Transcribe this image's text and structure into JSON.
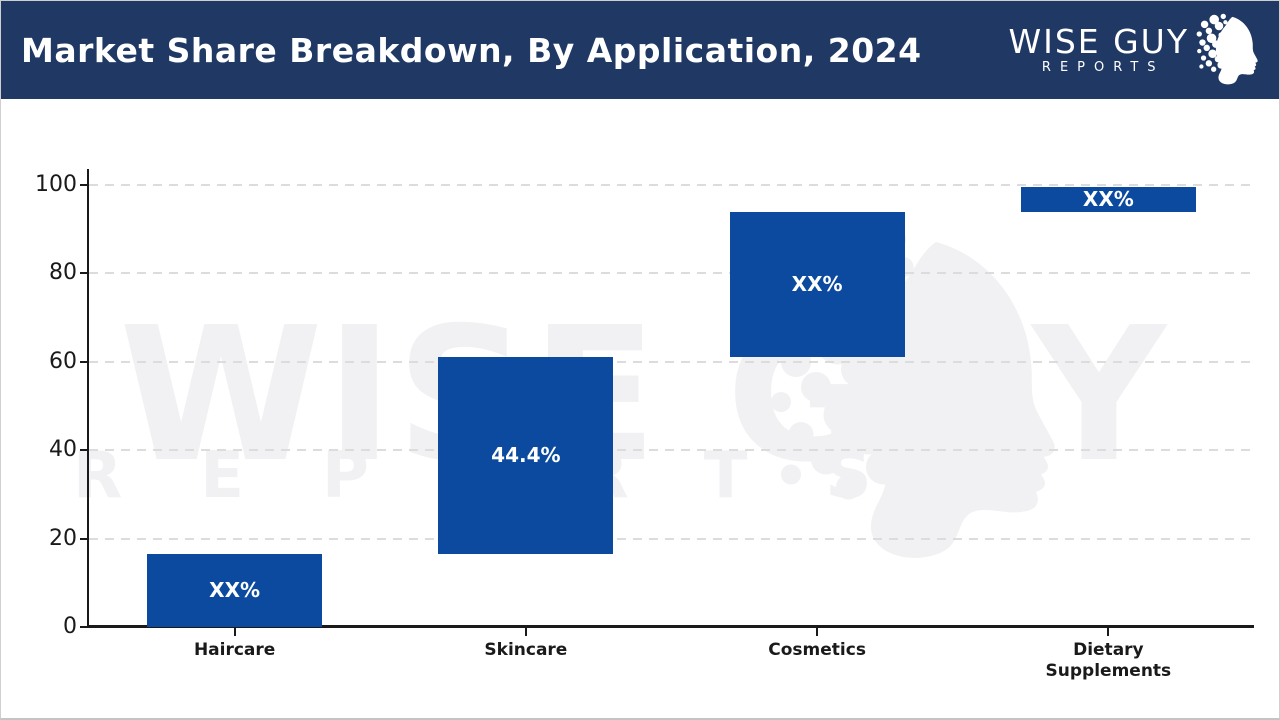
{
  "header": {
    "title": "Market Share Breakdown, By Application, 2024",
    "logo": {
      "line1": "WISE GUY",
      "line2": "REPORTS"
    }
  },
  "watermark": {
    "line1": "WISE GUY",
    "line2": "REPORTS"
  },
  "colors": {
    "header_bg": "#1F3864",
    "bar": "#0B4A9F",
    "gridline": "#DCDCDC",
    "axis": "#1A1A1A",
    "bar_label_text": "#FFFFFF",
    "watermark": "#F1F1F4"
  },
  "chart_data": {
    "type": "bar",
    "subtype": "floating-waterfall-segments",
    "title": "Market Share Breakdown, By Application, 2024",
    "categories": [
      "Haircare",
      "Skincare",
      "Cosmetics",
      "Dietary Supplements"
    ],
    "segments": [
      {
        "category": "Haircare",
        "start": 0,
        "end": 16.6,
        "height": 16.6,
        "label": "XX%"
      },
      {
        "category": "Skincare",
        "start": 16.6,
        "end": 61.0,
        "height": 44.4,
        "label": "44.4%"
      },
      {
        "category": "Cosmetics",
        "start": 61.0,
        "end": 94.0,
        "height": 33.0,
        "label": "XX%"
      },
      {
        "category": "Dietary Supplements",
        "start": 94.0,
        "end": 99.6,
        "height": 5.6,
        "label": "XX%"
      }
    ],
    "xlabel": "",
    "ylabel": "",
    "units": "%",
    "ylim": [
      0,
      100
    ],
    "yticks": [
      0,
      20,
      40,
      60,
      80,
      100
    ],
    "grid": "horizontal-dashed",
    "legend": "none"
  }
}
